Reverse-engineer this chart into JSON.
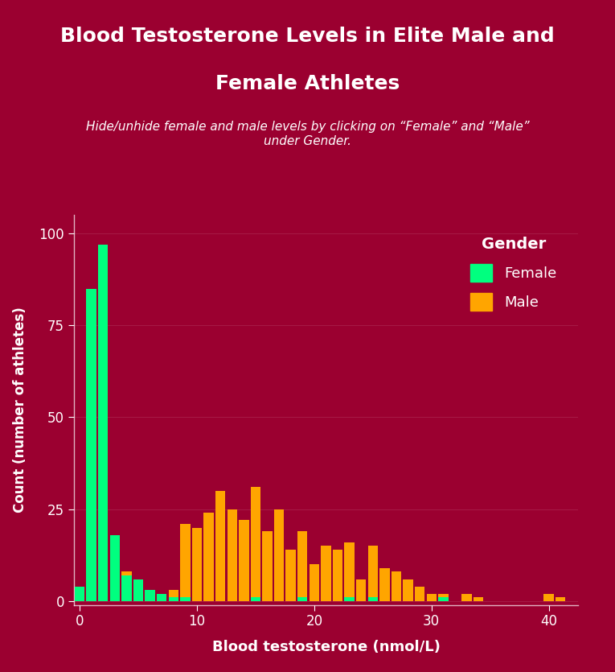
{
  "title_line1": "Blood Testosterone Levels in Elite Male and",
  "title_line2": "Female Athletes",
  "subtitle": "Hide/unhide female and male levels by clicking on “Female” and “Male”\nunder Gender.",
  "xlabel": "Blood testosterone (nmol/L)",
  "ylabel": "Count (number of athletes)",
  "background_color": "#9B0030",
  "axes_color": "#9B0030",
  "title_color": "#FFFFFF",
  "subtitle_color": "#FFFFFF",
  "label_color": "#FFFFFF",
  "tick_color": "#FFFFFF",
  "spine_color": "#FFFFFF",
  "female_color": "#00FF7F",
  "male_color": "#FFA500",
  "legend_title": "Gender",
  "legend_female": "Female",
  "legend_male": "Male",
  "xlim": [
    -0.5,
    42.5
  ],
  "ylim": [
    -1,
    105
  ],
  "xticks": [
    0,
    10,
    20,
    30,
    40
  ],
  "yticks": [
    0,
    25,
    50,
    75,
    100
  ],
  "female_bins": [
    0,
    1,
    2,
    3,
    4,
    5,
    6,
    7,
    8,
    9,
    10,
    11,
    12,
    13,
    14,
    15,
    16,
    17,
    18,
    19,
    20,
    21,
    22,
    23,
    24,
    25,
    26,
    27,
    28,
    29,
    30,
    31,
    32
  ],
  "female_values": [
    4,
    85,
    97,
    18,
    7,
    6,
    3,
    2,
    1,
    1,
    0,
    0,
    0,
    0,
    0,
    1,
    0,
    0,
    0,
    1,
    0,
    0,
    0,
    1,
    0,
    1,
    0,
    0,
    0,
    0,
    0,
    1,
    0
  ],
  "male_bins": [
    0,
    1,
    2,
    3,
    4,
    5,
    6,
    7,
    8,
    9,
    10,
    11,
    12,
    13,
    14,
    15,
    16,
    17,
    18,
    19,
    20,
    21,
    22,
    23,
    24,
    25,
    26,
    27,
    28,
    29,
    30,
    31,
    33,
    34,
    40,
    41
  ],
  "male_values": [
    1,
    5,
    12,
    13,
    8,
    5,
    3,
    2,
    3,
    21,
    20,
    24,
    30,
    25,
    22,
    31,
    19,
    25,
    14,
    19,
    10,
    15,
    14,
    16,
    6,
    15,
    9,
    8,
    6,
    4,
    2,
    2,
    2,
    1,
    2,
    1
  ]
}
